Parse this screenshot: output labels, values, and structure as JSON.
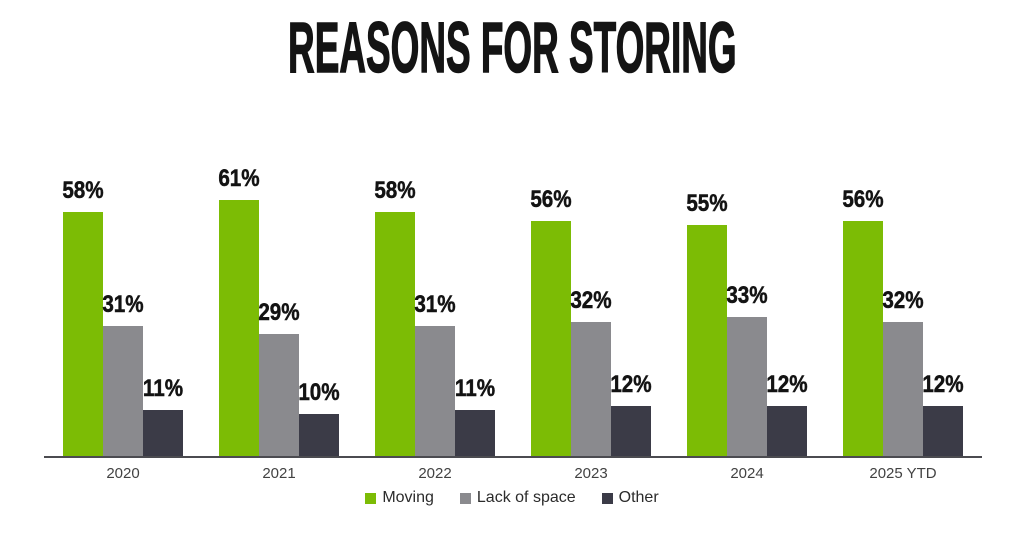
{
  "chart_data": {
    "type": "bar",
    "title": "REASONS FOR STORING",
    "categories": [
      "2020",
      "2021",
      "2022",
      "2023",
      "2024",
      "2025 YTD"
    ],
    "series": [
      {
        "name": "Moving",
        "color": "#7cbc05",
        "values": [
          58,
          61,
          58,
          56,
          55,
          56
        ]
      },
      {
        "name": "Lack of space",
        "color": "#8a8a8e",
        "values": [
          31,
          29,
          31,
          32,
          33,
          32
        ]
      },
      {
        "name": "Other",
        "color": "#3b3b47",
        "values": [
          11,
          10,
          11,
          12,
          12,
          12
        ]
      }
    ],
    "value_suffix": "%",
    "ylim": [
      0,
      65
    ],
    "grid": false,
    "legend_position": "bottom",
    "bar_value_labels": true,
    "axis_color": "#4b4b50"
  }
}
